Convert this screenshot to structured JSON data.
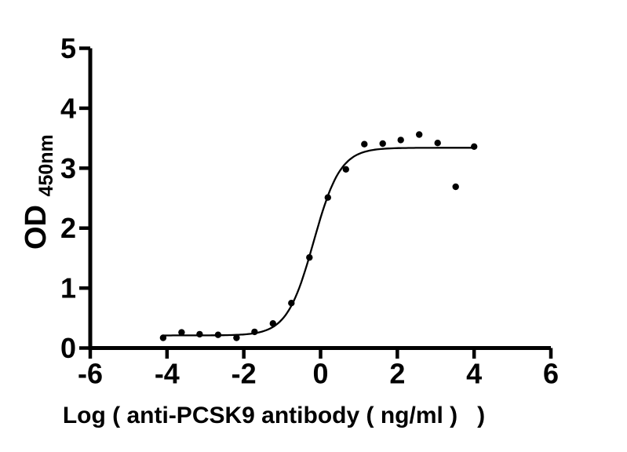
{
  "figure": {
    "background": "#ffffff",
    "ink": "#000000"
  },
  "chart_data": {
    "type": "scatter",
    "title": "",
    "xlabel": "Log ( anti-PCSK9 antibody ( ng/ml )   )",
    "ylabel_main": "OD",
    "ylabel_sub": "450nm",
    "xlim": [
      -6,
      6
    ],
    "ylim": [
      0,
      5
    ],
    "x_ticks": [
      -6,
      -4,
      -2,
      0,
      2,
      4,
      6
    ],
    "y_ticks": [
      0,
      1,
      2,
      3,
      4,
      5
    ],
    "grid": false,
    "legend": "none",
    "marker_color": "#000000",
    "line_color": "#000000",
    "points": {
      "x": [
        -4.1,
        -3.62,
        -3.15,
        -2.67,
        -2.19,
        -1.72,
        -1.24,
        -0.76,
        -0.29,
        0.19,
        0.66,
        1.14,
        1.62,
        2.09,
        2.57,
        3.05,
        3.52,
        4.0
      ],
      "y": [
        0.17,
        0.26,
        0.23,
        0.22,
        0.17,
        0.27,
        0.41,
        0.75,
        1.51,
        2.51,
        2.98,
        3.4,
        3.41,
        3.47,
        3.56,
        3.42,
        2.69,
        3.36
      ]
    },
    "fit_curve": {
      "model": "4PL-sigmoid",
      "bottom": 0.21,
      "top": 3.34,
      "log_ec50": -0.18,
      "hill_slope": 1.25,
      "x_start": -4.1,
      "x_end": 4.0
    }
  }
}
